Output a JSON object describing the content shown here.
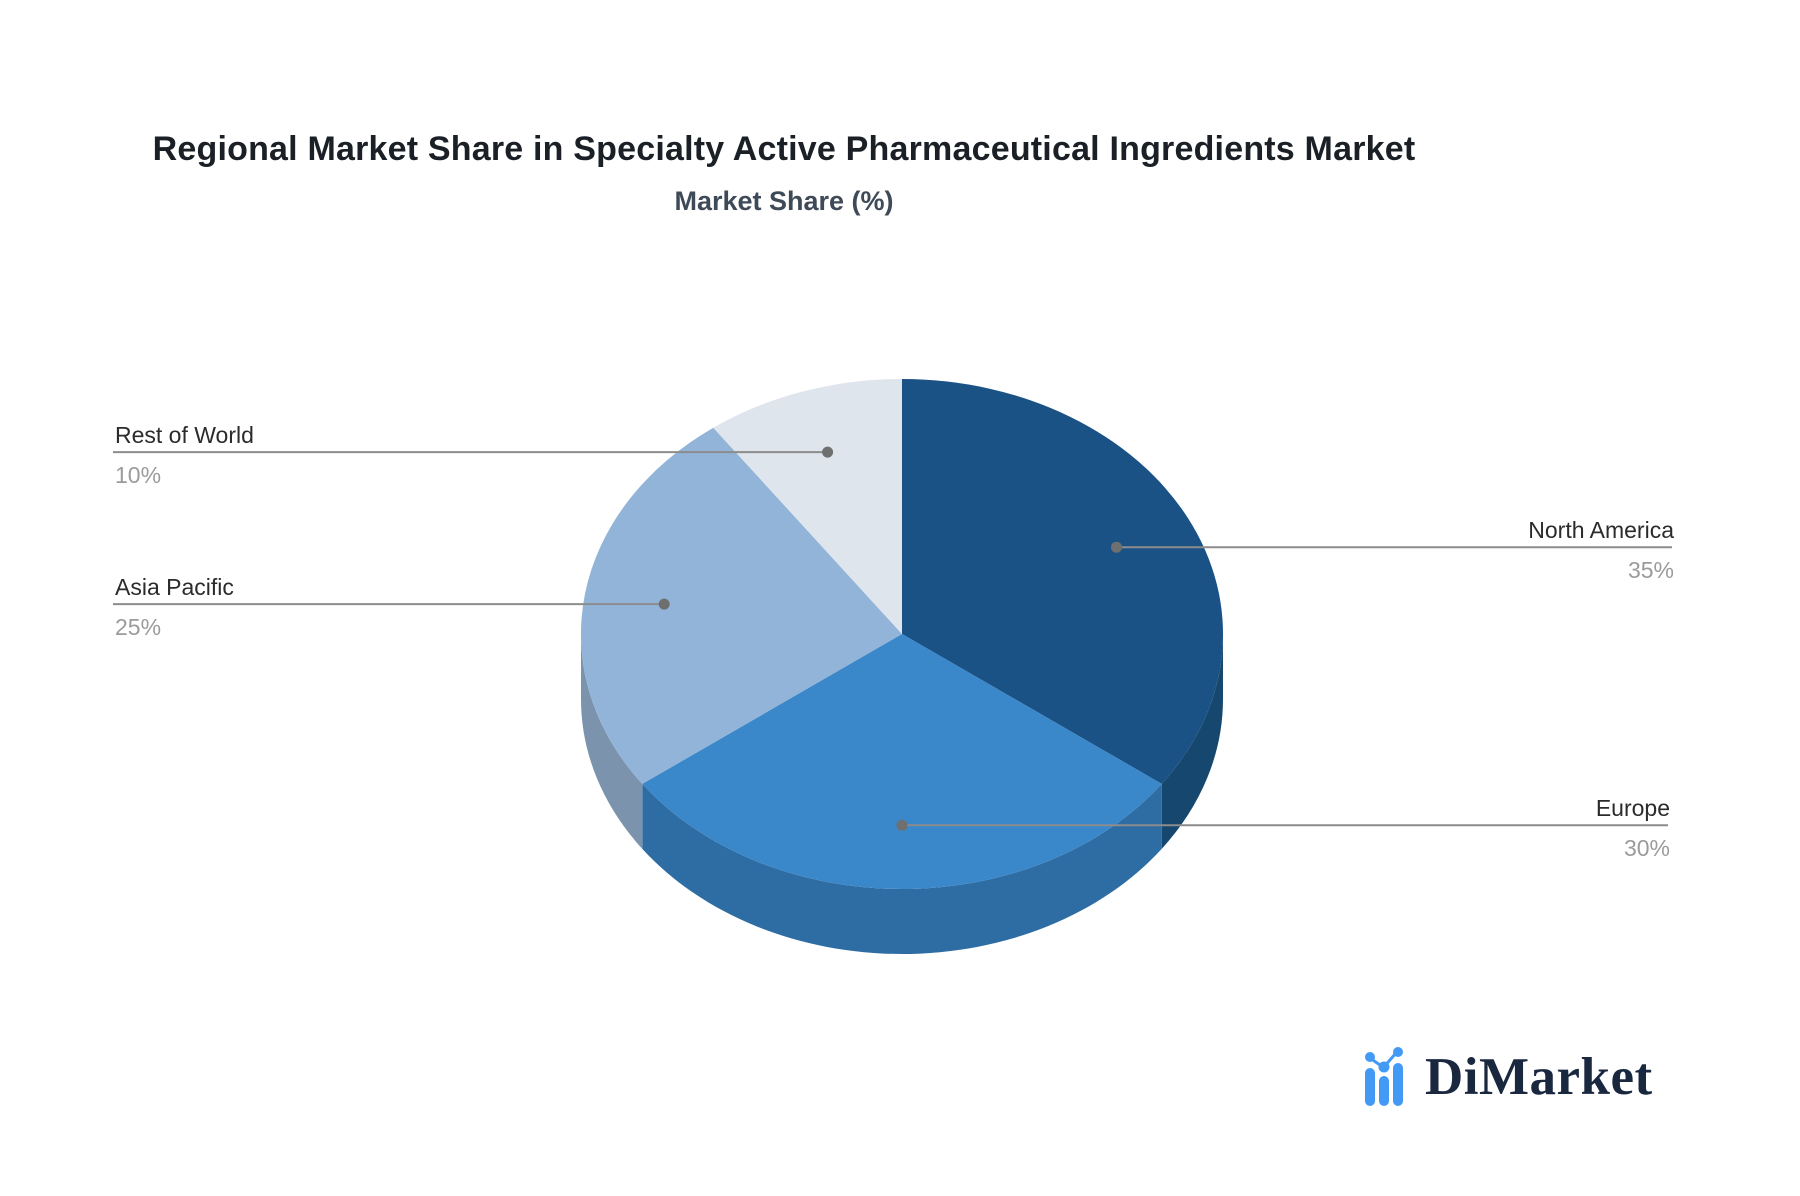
{
  "title": "Regional Market Share in Specialty Active Pharmaceutical Ingredients Market",
  "subtitle": "Market Share (%)",
  "watermark": {
    "brand": "DiMarket"
  },
  "chart_data": {
    "type": "pie",
    "title": "Regional Market Share in Specialty Active Pharmaceutical Ingredients Market",
    "subtitle": "Market Share (%)",
    "unit": "%",
    "style": "3d-pie",
    "start_angle_deg": 0,
    "direction": "clockwise",
    "legend": false,
    "series": [
      {
        "label": "North America",
        "value": 35,
        "display": "35%",
        "color": "#1A5286",
        "side_color": "#16486F",
        "label_side": "right"
      },
      {
        "label": "Europe",
        "value": 30,
        "display": "30%",
        "color": "#3A87CA",
        "side_color": "#2E6DA3",
        "label_side": "right"
      },
      {
        "label": "Asia Pacific",
        "value": 25,
        "display": "25%",
        "color": "#92B4D8",
        "side_color": "#7C93AD",
        "label_side": "left"
      },
      {
        "label": "Rest of World",
        "value": 10,
        "display": "10%",
        "color": "#DFE5EC",
        "side_color": "#C2CCD9",
        "label_side": "left"
      }
    ],
    "connector_color": "#8C8C8C",
    "connector_dot_color": "#6F6F6F"
  }
}
